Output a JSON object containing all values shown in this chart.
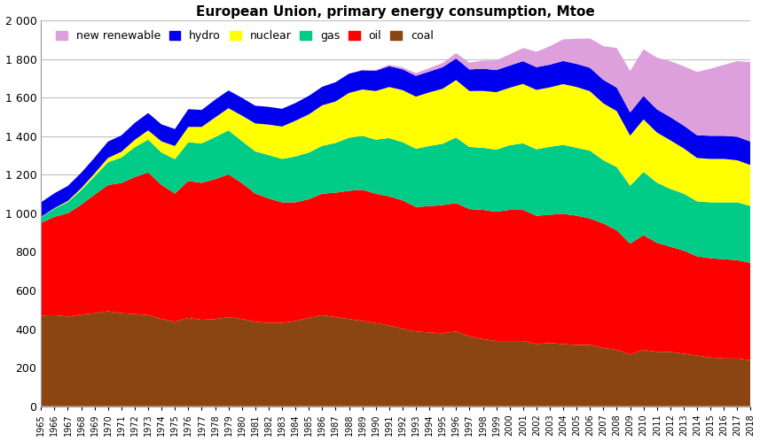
{
  "title": "European Union, primary energy consumption, Mtoe",
  "years": [
    1965,
    1966,
    1967,
    1968,
    1969,
    1970,
    1971,
    1972,
    1973,
    1974,
    1975,
    1976,
    1977,
    1978,
    1979,
    1980,
    1981,
    1982,
    1983,
    1984,
    1985,
    1986,
    1987,
    1988,
    1989,
    1990,
    1991,
    1992,
    1993,
    1994,
    1995,
    1996,
    1997,
    1998,
    1999,
    2000,
    2001,
    2002,
    2003,
    2004,
    2005,
    2006,
    2007,
    2008,
    2009,
    2010,
    2011,
    2012,
    2013,
    2014,
    2015,
    2016,
    2017,
    2018
  ],
  "coal": [
    470,
    472,
    465,
    475,
    482,
    492,
    482,
    478,
    472,
    452,
    438,
    458,
    448,
    452,
    462,
    452,
    438,
    432,
    432,
    442,
    458,
    472,
    462,
    452,
    442,
    432,
    418,
    402,
    388,
    382,
    378,
    388,
    362,
    348,
    338,
    338,
    338,
    322,
    328,
    322,
    318,
    318,
    302,
    292,
    268,
    292,
    282,
    282,
    272,
    262,
    252,
    247,
    247,
    238
  ],
  "oil": [
    480,
    510,
    535,
    570,
    615,
    655,
    675,
    710,
    740,
    695,
    665,
    710,
    710,
    725,
    740,
    705,
    665,
    645,
    625,
    615,
    615,
    630,
    645,
    665,
    680,
    670,
    670,
    665,
    645,
    655,
    665,
    665,
    660,
    670,
    670,
    680,
    680,
    665,
    665,
    675,
    670,
    655,
    645,
    620,
    575,
    595,
    565,
    545,
    535,
    515,
    515,
    515,
    510,
    505
  ],
  "gas": [
    30,
    42,
    58,
    75,
    95,
    118,
    132,
    155,
    170,
    168,
    178,
    200,
    205,
    218,
    228,
    218,
    218,
    225,
    225,
    238,
    242,
    248,
    258,
    275,
    280,
    280,
    302,
    302,
    302,
    312,
    318,
    340,
    322,
    322,
    322,
    335,
    345,
    345,
    352,
    358,
    352,
    352,
    328,
    328,
    300,
    328,
    312,
    300,
    295,
    285,
    290,
    295,
    300,
    295
  ],
  "nuclear": [
    2,
    3,
    6,
    10,
    15,
    22,
    30,
    38,
    48,
    58,
    68,
    80,
    85,
    102,
    115,
    132,
    145,
    158,
    168,
    185,
    198,
    210,
    215,
    232,
    240,
    252,
    265,
    270,
    270,
    278,
    285,
    298,
    290,
    295,
    298,
    298,
    308,
    308,
    308,
    315,
    315,
    308,
    295,
    290,
    260,
    272,
    260,
    252,
    235,
    225,
    225,
    225,
    218,
    212
  ],
  "hydro": [
    75,
    77,
    78,
    80,
    82,
    85,
    85,
    88,
    90,
    88,
    88,
    92,
    88,
    92,
    92,
    92,
    92,
    92,
    92,
    92,
    96,
    96,
    100,
    100,
    100,
    105,
    108,
    108,
    108,
    108,
    112,
    112,
    112,
    115,
    115,
    115,
    118,
    118,
    118,
    120,
    120,
    122,
    122,
    122,
    120,
    122,
    120,
    120,
    118,
    118,
    120,
    120,
    122,
    122
  ],
  "new_renewable": [
    0,
    0,
    0,
    0,
    0,
    0,
    0,
    0,
    0,
    0,
    0,
    0,
    0,
    0,
    0,
    0,
    0,
    0,
    0,
    0,
    0,
    0,
    0,
    0,
    2,
    5,
    7,
    10,
    14,
    18,
    22,
    28,
    35,
    42,
    50,
    58,
    68,
    80,
    95,
    112,
    130,
    152,
    175,
    205,
    215,
    242,
    268,
    290,
    308,
    328,
    348,
    368,
    392,
    412
  ],
  "colors": {
    "coal": "#8B4513",
    "oil": "#FF0000",
    "gas": "#00CC88",
    "nuclear": "#FFFF00",
    "hydro": "#0000EE",
    "new_renewable": "#DDA0DD"
  },
  "legend_labels": [
    "new renewable",
    "hydro",
    "nuclear",
    "gas",
    "oil",
    "coal"
  ],
  "ylim": [
    0,
    2000
  ],
  "yticks": [
    0,
    200,
    400,
    600,
    800,
    1000,
    1200,
    1400,
    1600,
    1800,
    2000
  ],
  "ytick_labels": [
    "0",
    "200",
    "400",
    "600",
    "800",
    "1 000",
    "1 200",
    "1 400",
    "1 600",
    "1 800",
    "2 000"
  ],
  "background_color": "#FFFFFF",
  "grid_color": "#C0C0C0"
}
